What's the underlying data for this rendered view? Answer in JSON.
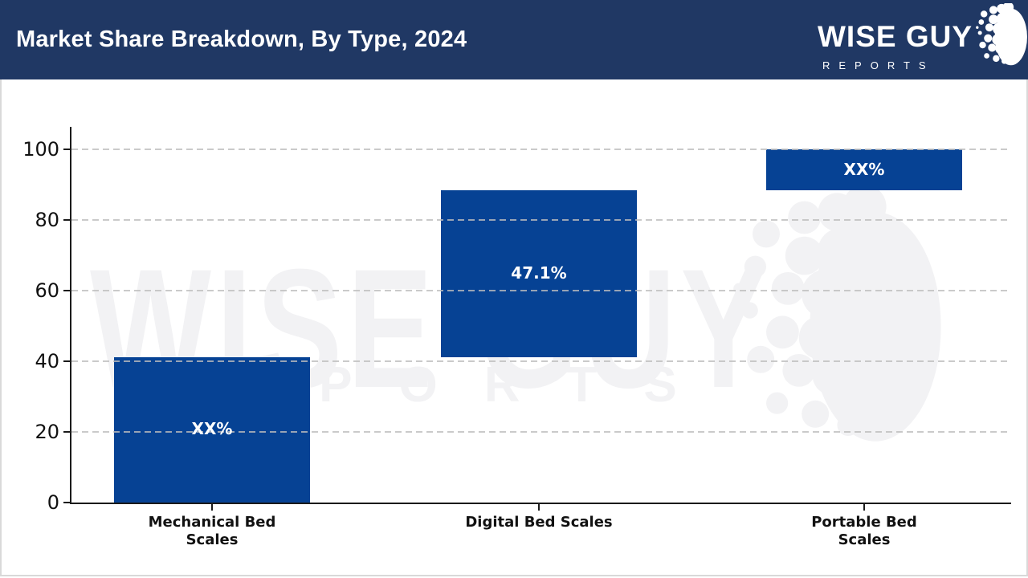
{
  "page": {
    "background": "#ffffff",
    "border_color": "#d9d9d9"
  },
  "header": {
    "background": "#203864",
    "title": "Market Share Breakdown, By Type, 2024",
    "logo": {
      "wordmark": "WISE GUY",
      "sub": "REPORTS",
      "icon": "dotted-head-profile"
    }
  },
  "watermark": {
    "wordmark": "WISE GUY",
    "sub": "REPORTS",
    "icon": "dotted-head-profile"
  },
  "chart_data": {
    "type": "bar",
    "subtype": "waterfall",
    "title": "Market Share Breakdown, By Type, 2024",
    "categories": [
      "Mechanical Bed Scales",
      "Digital Bed Scales",
      "Portable Bed Scales"
    ],
    "tick_label_lines": [
      [
        "Mechanical Bed",
        "Scales"
      ],
      [
        "Digital Bed Scales"
      ],
      [
        "Portable Bed",
        "Scales"
      ]
    ],
    "bars": [
      {
        "category": "Mechanical Bed Scales",
        "start": 0,
        "end": 41.2,
        "value_label": "XX%"
      },
      {
        "category": "Digital Bed Scales",
        "start": 41.2,
        "end": 88.3,
        "value_label": "47.1%"
      },
      {
        "category": "Portable Bed Scales",
        "start": 88.3,
        "end": 100,
        "value_label": "XX%"
      }
    ],
    "xlabel": "",
    "ylabel": "",
    "ylim": [
      0,
      100
    ],
    "yticks": [
      0,
      20,
      40,
      60,
      80,
      100
    ],
    "grid": {
      "axis": "y",
      "style": "dashed",
      "color": "#c8c8c8",
      "above_bars": true
    },
    "bar_color": "#064294",
    "value_label_color": "#ffffff",
    "legend": "none"
  }
}
